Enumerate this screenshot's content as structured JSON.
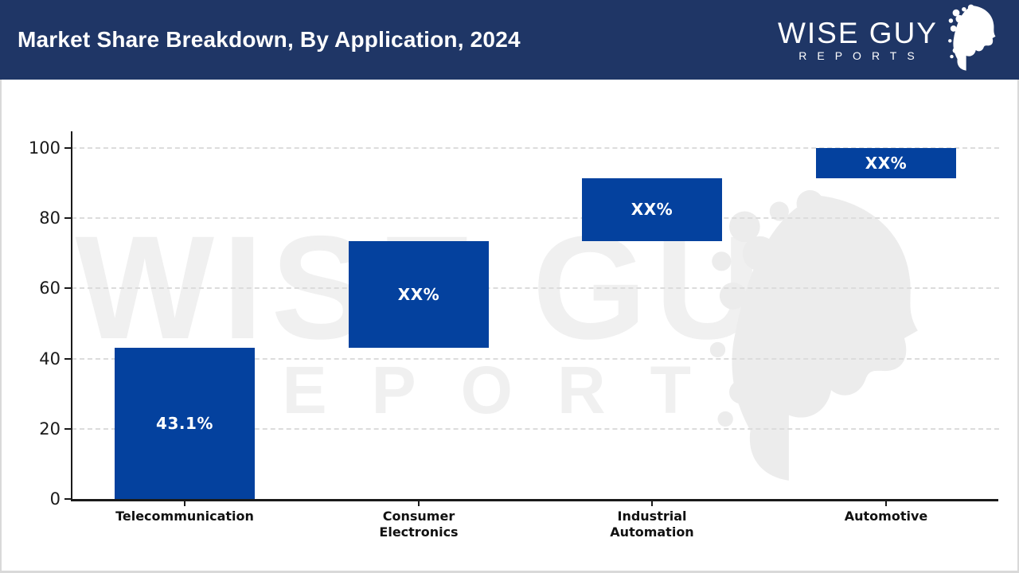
{
  "header": {
    "title": "Market Share Breakdown, By Application, 2024",
    "logo": {
      "line1": "WISE GUY",
      "line2": "REPORTS"
    }
  },
  "watermark": {
    "line1": "WISE GUY",
    "line2": "REPORTS"
  },
  "colors": {
    "header_bg": "#1f3666",
    "bar_fill": "#04419e",
    "bar_label_text": "#ffffff",
    "gridline": "#dcdcdc",
    "axis": "#1a1a1a",
    "watermark": "#f0f0f0",
    "page_border": "#d9d9d9"
  },
  "chart_data": {
    "type": "bar",
    "subtype": "waterfall-breakdown",
    "title": "Market Share Breakdown, By Application, 2024",
    "categories": [
      "Telecommunication",
      "Consumer Electronics",
      "Industrial Automation",
      "Automotive"
    ],
    "bars": [
      {
        "category": "Telecommunication",
        "start": 0,
        "end": 43.1,
        "label": "43.1%"
      },
      {
        "category": "Consumer Electronics",
        "start": 43.1,
        "end": 73.5,
        "label": "XX%"
      },
      {
        "category": "Industrial Automation",
        "start": 73.5,
        "end": 91.4,
        "label": "XX%"
      },
      {
        "category": "Automotive",
        "start": 91.4,
        "end": 100,
        "label": "XX%"
      }
    ],
    "xlabel": "",
    "ylabel": "",
    "ylim": [
      0,
      100
    ],
    "yticks": [
      0,
      20,
      40,
      60,
      80,
      100
    ],
    "grid": "horizontal-dashed",
    "legend_position": "none",
    "bar_color": "#04419e"
  }
}
